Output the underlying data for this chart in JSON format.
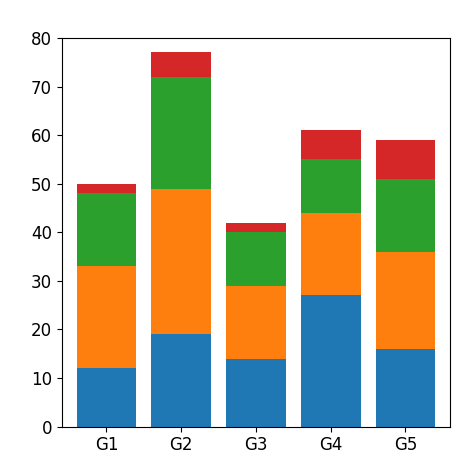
{
  "categories": [
    "G1",
    "G2",
    "G3",
    "G4",
    "G5"
  ],
  "series": {
    "blue": [
      12,
      19,
      14,
      27,
      16
    ],
    "orange": [
      21,
      30,
      15,
      17,
      20
    ],
    "green": [
      15,
      23,
      11,
      11,
      15
    ],
    "red": [
      2,
      5,
      2,
      6,
      8
    ]
  },
  "colors": {
    "blue": "#1f77b4",
    "orange": "#ff7f0e",
    "green": "#2ca02c",
    "red": "#d62728"
  },
  "ylim": [
    0,
    80
  ],
  "yticks": [
    0,
    10,
    20,
    30,
    40,
    50,
    60,
    70,
    80
  ],
  "figsize": [
    4.74,
    4.74
  ],
  "dpi": 100,
  "bar_width": 0.8
}
